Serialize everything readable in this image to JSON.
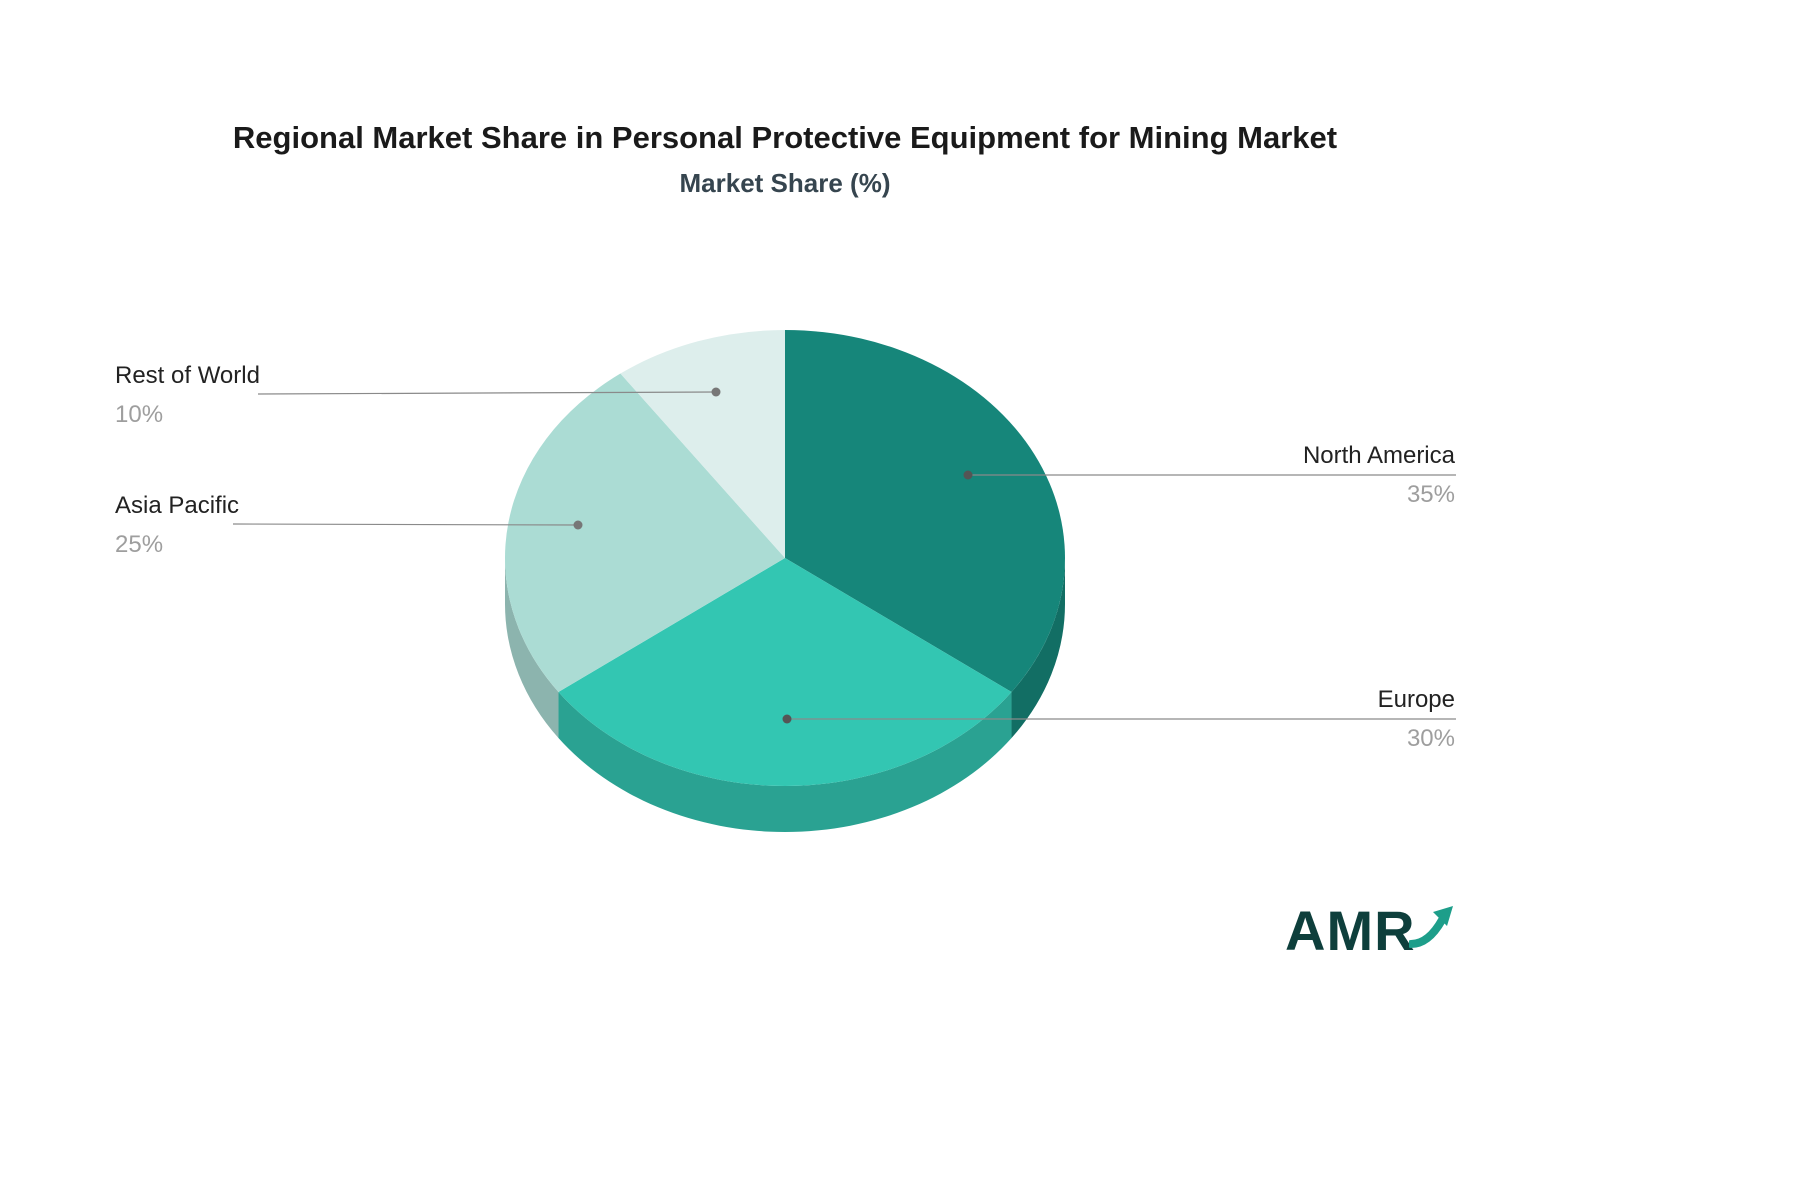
{
  "title": "Regional Market Share in Personal Protective Equipment for Mining Market",
  "subtitle": "Market Share (%)",
  "logo_text": "AMR",
  "chart_data": {
    "type": "pie",
    "style": "3d",
    "title": "Regional Market Share in Personal Protective Equipment for Mining Market",
    "subtitle": "Market Share (%)",
    "unit": "%",
    "labels": [
      "North America",
      "Europe",
      "Asia Pacific",
      "Rest of World"
    ],
    "values": [
      35,
      30,
      25,
      10
    ],
    "value_labels": [
      "35%",
      "30%",
      "25%",
      "10%"
    ],
    "colors": [
      "#16867a",
      "#33c6b2",
      "#abdcd4",
      "#ddeeec"
    ],
    "legend_position": "none",
    "start_angle_deg": 0,
    "direction": "clockwise"
  }
}
